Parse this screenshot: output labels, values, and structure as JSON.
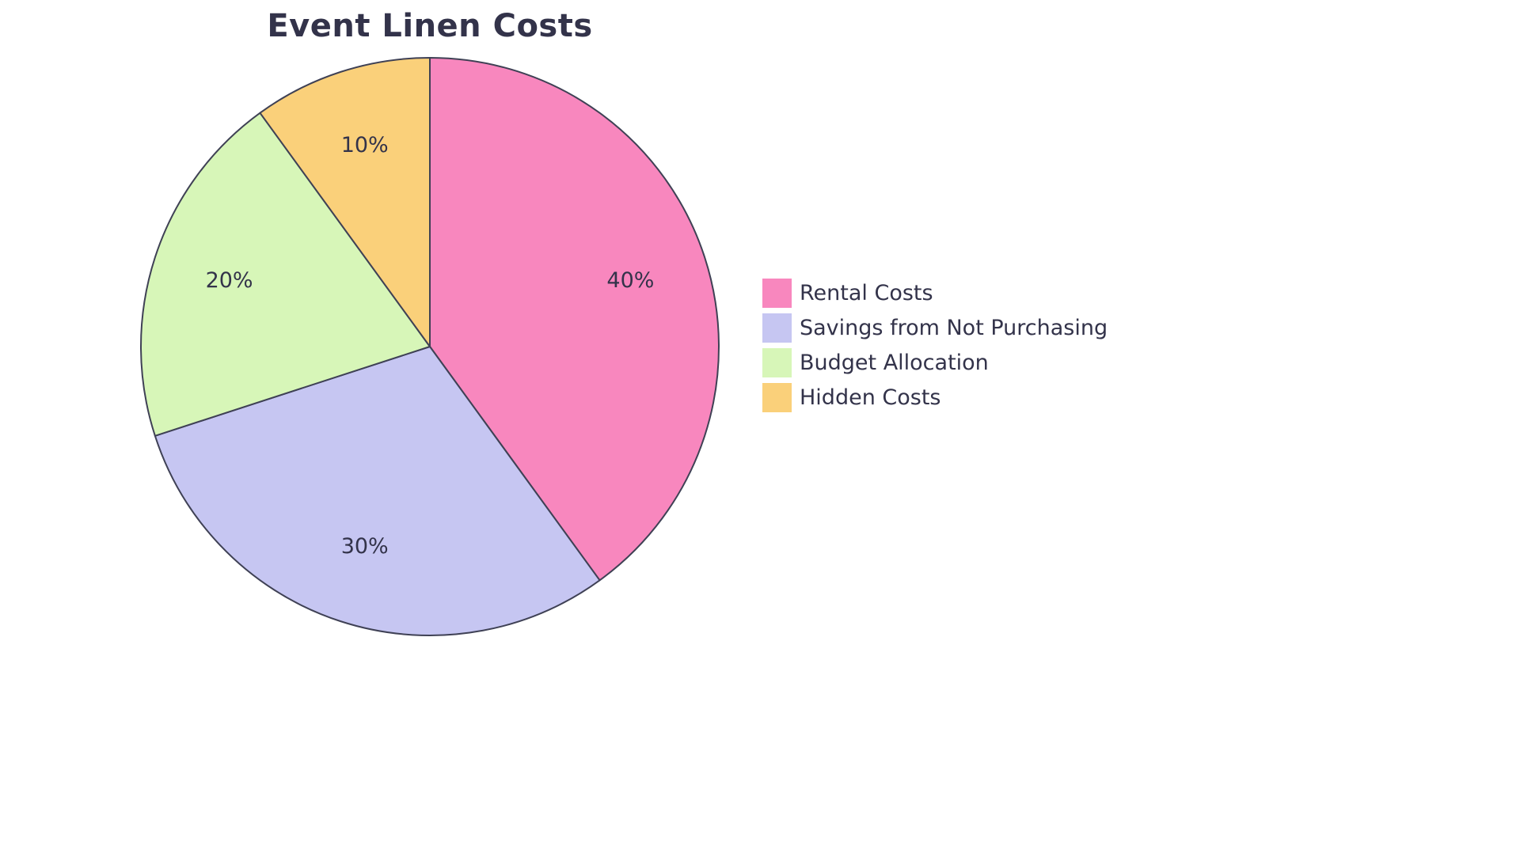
{
  "chart_data": {
    "type": "pie",
    "title": "Event Linen Costs",
    "labels": [
      "Rental Costs",
      "Savings from Not Purchasing",
      "Budget Allocation",
      "Hidden Costs"
    ],
    "values": [
      40,
      30,
      20,
      10
    ],
    "slice_labels": [
      "40%",
      "30%",
      "20%",
      "10%"
    ],
    "colors": [
      "#F887BE",
      "#C6C6F2",
      "#D7F6B8",
      "#FAD07A"
    ],
    "stroke_color": "#3F4155",
    "text_color": "#33334A",
    "start_angle_deg": 0,
    "direction": "clockwise",
    "legend_position": "right",
    "background": "#FFFFFF"
  }
}
